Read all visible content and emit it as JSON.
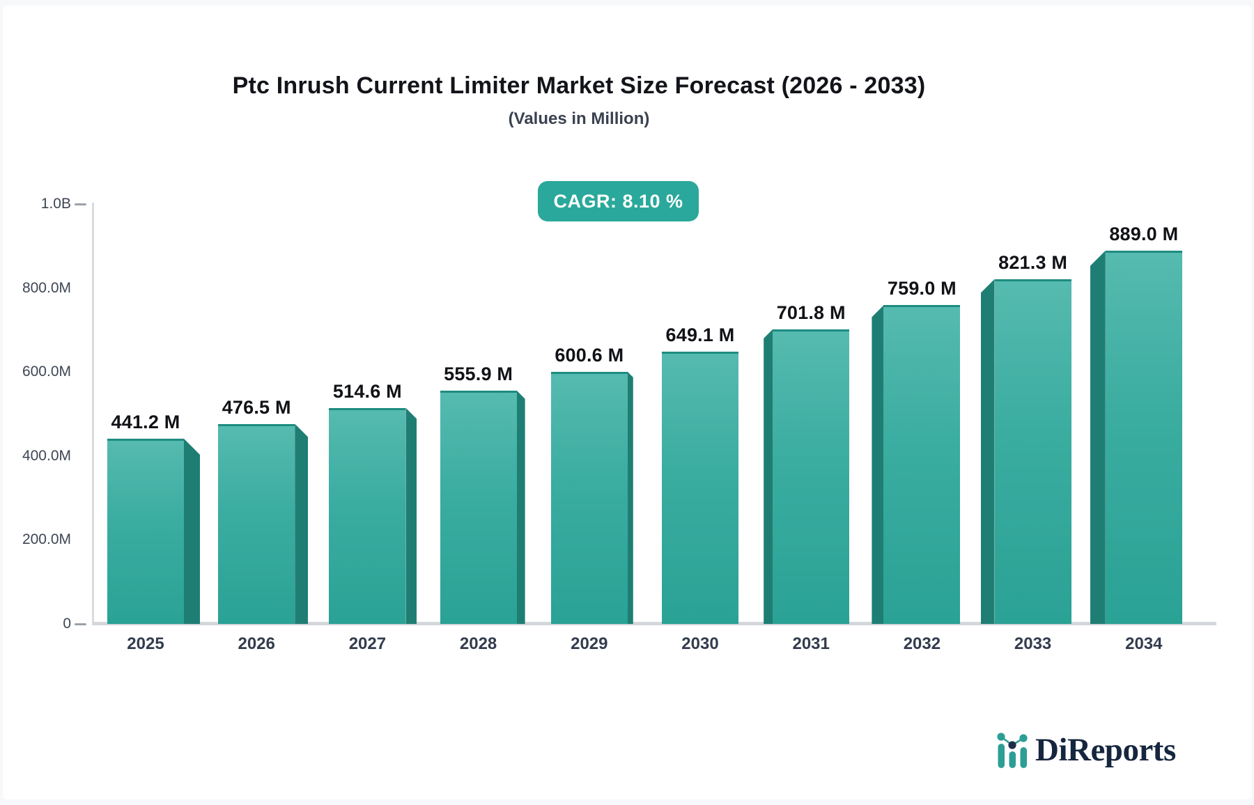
{
  "title": "Ptc Inrush Current Limiter Market Size Forecast (2026 - 2033)",
  "subtitle": "(Values in Million)",
  "cagr_badge": "CAGR: 8.10 %",
  "brand": {
    "name": "DiReports"
  },
  "colors": {
    "bar_face_top": "#56bab0",
    "bar_face_bottom": "#2aa295",
    "bar_side": "#1f7e74",
    "bar_top_edge": "#1d8c80",
    "badge_bg": "#2aa89b",
    "axis_line": "#d6d9dd",
    "tick_dash": "#9aa1a9",
    "axis_label": "#3e4653",
    "value_label": "#101216",
    "logo_teal": "#2d9e95",
    "logo_navy": "#16263e"
  },
  "chart_data": {
    "type": "bar",
    "title": "Ptc Inrush Current Limiter Market Size Forecast (2026 - 2033)",
    "subtitle": "(Values in Million)",
    "cagr": "8.10 %",
    "unit": "Million USD",
    "categories": [
      "2025",
      "2026",
      "2027",
      "2028",
      "2029",
      "2030",
      "2031",
      "2032",
      "2033",
      "2034"
    ],
    "values_millions": [
      441.2,
      476.5,
      514.6,
      555.9,
      600.6,
      649.1,
      701.8,
      759.0,
      821.3,
      889.0
    ],
    "bar_labels": [
      "441.2 M",
      "476.5 M",
      "514.6 M",
      "555.9 M",
      "600.6 M",
      "649.1 M",
      "701.8 M",
      "759.0 M",
      "821.3 M",
      "889.0 M"
    ],
    "ylim": [
      0,
      1000
    ],
    "yticks": [
      {
        "label": "1.0B",
        "value": 1000,
        "dash": true
      },
      {
        "label": "800.0M",
        "value": 800,
        "dash": false
      },
      {
        "label": "600.0M",
        "value": 600,
        "dash": false
      },
      {
        "label": "400.0M",
        "value": 400,
        "dash": false
      },
      {
        "label": "200.0M",
        "value": 200,
        "dash": false
      },
      {
        "label": "0",
        "value": 0,
        "dash": true
      }
    ],
    "grid": false,
    "legend": "none",
    "bar_style": "3d-perspective-teal"
  }
}
